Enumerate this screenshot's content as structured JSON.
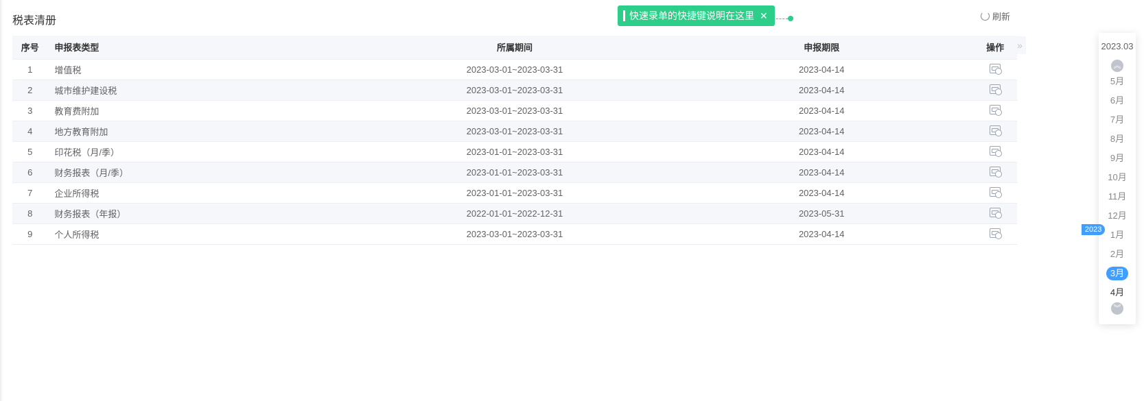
{
  "header": {
    "title": "税表清册",
    "tip_text": "快速录单的快捷键说明在这里",
    "refresh_label": "刷新"
  },
  "table": {
    "columns": {
      "seq": "序号",
      "type": "申报表类型",
      "period": "所属期间",
      "due": "申报期限",
      "op": "操作"
    },
    "rows": [
      {
        "seq": "1",
        "type": "增值税",
        "period": "2023-03-01~2023-03-31",
        "due": "2023-04-14"
      },
      {
        "seq": "2",
        "type": "城市维护建设税",
        "period": "2023-03-01~2023-03-31",
        "due": "2023-04-14"
      },
      {
        "seq": "3",
        "type": "教育费附加",
        "period": "2023-03-01~2023-03-31",
        "due": "2023-04-14"
      },
      {
        "seq": "4",
        "type": "地方教育附加",
        "period": "2023-03-01~2023-03-31",
        "due": "2023-04-14"
      },
      {
        "seq": "5",
        "type": "印花税（月/季）",
        "period": "2023-01-01~2023-03-31",
        "due": "2023-04-14"
      },
      {
        "seq": "6",
        "type": "财务报表（月/季）",
        "period": "2023-01-01~2023-03-31",
        "due": "2023-04-14"
      },
      {
        "seq": "7",
        "type": "企业所得税",
        "period": "2023-01-01~2023-03-31",
        "due": "2023-04-14"
      },
      {
        "seq": "8",
        "type": "财务报表（年报）",
        "period": "2022-01-01~2022-12-31",
        "due": "2023-05-31"
      },
      {
        "seq": "9",
        "type": "个人所得税",
        "period": "2023-03-01~2023-03-31",
        "due": "2023-04-14"
      }
    ]
  },
  "side": {
    "current": "2023.03",
    "year_badge": "2023",
    "months": [
      {
        "label": "5月",
        "state": "past"
      },
      {
        "label": "6月",
        "state": "past"
      },
      {
        "label": "7月",
        "state": "past"
      },
      {
        "label": "8月",
        "state": "past"
      },
      {
        "label": "9月",
        "state": "past"
      },
      {
        "label": "10月",
        "state": "past"
      },
      {
        "label": "11月",
        "state": "past"
      },
      {
        "label": "12月",
        "state": "past"
      },
      {
        "label": "1月",
        "state": "past",
        "year_break": true
      },
      {
        "label": "2月",
        "state": "past"
      },
      {
        "label": "3月",
        "state": "active"
      },
      {
        "label": "4月",
        "state": "future"
      }
    ]
  },
  "colors": {
    "accent_green": "#2dce89",
    "accent_blue": "#409eff",
    "header_bg": "#f5f7fa",
    "border": "#ebeef5",
    "text": "#606266",
    "muted_icon": "#c0c4cc"
  }
}
